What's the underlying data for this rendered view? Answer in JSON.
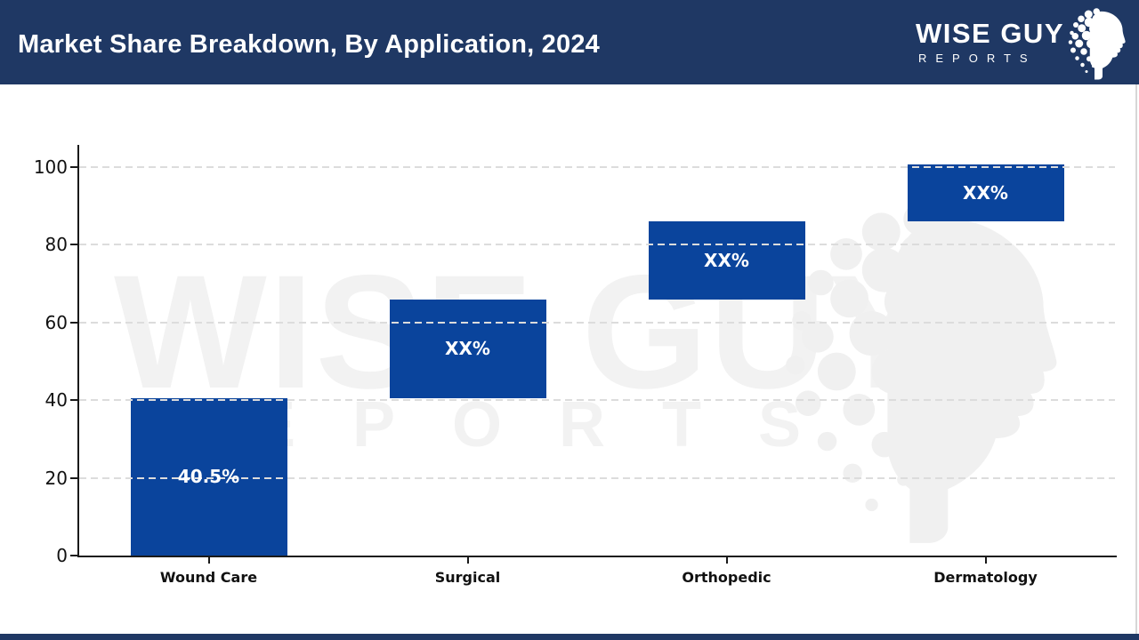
{
  "header": {
    "title": "Market Share Breakdown, By Application, 2024",
    "logo": {
      "line1": "WISE GUY",
      "line2": "REPORTS"
    }
  },
  "watermark": {
    "line1": "WISE GUY",
    "line2": "REPORTS"
  },
  "footer": {},
  "chart_data": {
    "type": "bar",
    "subtype": "floating-waterfall-bars",
    "title": "Market Share Breakdown, By Application, 2024",
    "categories": [
      "Wound Care",
      "Surgical",
      "Orthopedic",
      "Dermatology"
    ],
    "segments": [
      {
        "category": "Wound Care",
        "start": 0,
        "end": 40.5,
        "label": "40.5%"
      },
      {
        "category": "Surgical",
        "start": 40.5,
        "end": 65.8,
        "label": "XX%"
      },
      {
        "category": "Orthopedic",
        "start": 65.8,
        "end": 86.0,
        "label": "XX%"
      },
      {
        "category": "Dermatology",
        "start": 86.0,
        "end": 100.5,
        "label": "XX%"
      }
    ],
    "ytick_labels": [
      "0",
      "20",
      "40",
      "60",
      "80",
      "100"
    ],
    "ytick_values": [
      0,
      20,
      40,
      60,
      80,
      100
    ],
    "ylim": [
      0,
      105
    ],
    "xlabel": "",
    "ylabel": "",
    "grid": "horizontal-dashed",
    "legend": "none",
    "colors": {
      "bar": "#0A449C",
      "header_bg": "#1F3864",
      "axis": "#1A1A1A",
      "gridline": "#DCDCDC",
      "watermark": "#F2F2F2",
      "value_label": "#FFFFFF"
    }
  }
}
